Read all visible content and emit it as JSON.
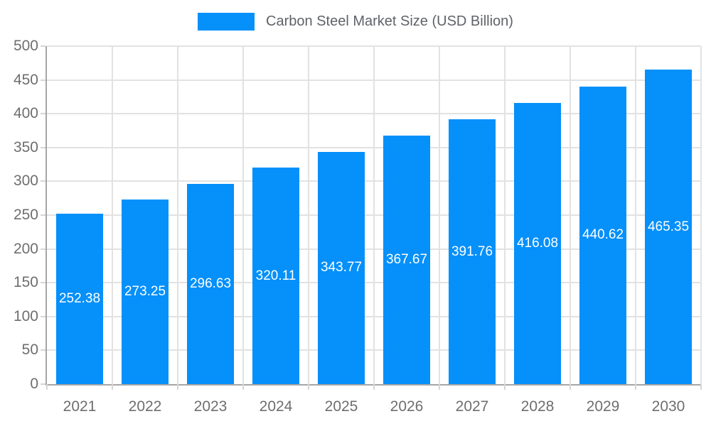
{
  "legend": {
    "label": "Carbon Steel Market Size (USD Billion)"
  },
  "colors": {
    "bar": "#0590fa",
    "grid": "#e2e2e2",
    "axis": "#a6a6a6",
    "tick": "#d6d6d6",
    "axis_text": "#6e6e6e",
    "bar_label_text": "#ffffff",
    "legend_text": "#5f6368"
  },
  "chart_data": {
    "type": "bar",
    "title": "Carbon Steel Market Size (USD Billion)",
    "series_name": "Carbon Steel Market Size (USD Billion)",
    "categories": [
      "2021",
      "2022",
      "2023",
      "2024",
      "2025",
      "2026",
      "2027",
      "2028",
      "2029",
      "2030"
    ],
    "values": [
      252.38,
      273.25,
      296.63,
      320.11,
      343.77,
      367.67,
      391.76,
      416.08,
      440.62,
      465.35
    ],
    "value_labels": [
      "252.38",
      "273.25",
      "296.63",
      "320.11",
      "343.77",
      "367.67",
      "391.76",
      "416.08",
      "440.62",
      "465.35"
    ],
    "xlabel": "",
    "ylabel": "",
    "ylim": [
      0,
      500
    ],
    "ytick_step": 50,
    "yticks": [
      0,
      50,
      100,
      150,
      200,
      250,
      300,
      350,
      400,
      450,
      500
    ],
    "grid": true,
    "legend_position": "top",
    "bar_labels": "inside-center"
  }
}
